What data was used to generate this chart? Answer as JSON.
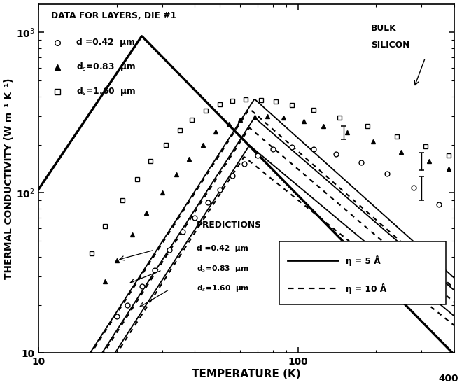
{
  "xlabel": "TEMPERATURE (K)",
  "ylabel": "THERMAL CONDUCTIVITY (W m⁻¹ K⁻¹)",
  "xlim_log": [
    1.0,
    2.602
  ],
  "ylim_log": [
    1.0,
    3.176
  ],
  "bulk_silicon_label": "BULK\nSILICON",
  "predictions_label": "PREDICTIONS",
  "legend_title": "DATA FOR LAYERS, DIE #1",
  "eta5_label": "η = 5 Å",
  "eta10_label": "η = 10 Å",
  "data_042_T": [
    20,
    22,
    25,
    28,
    32,
    36,
    40,
    45,
    50,
    56,
    62,
    70,
    80,
    95,
    115,
    140,
    175,
    220,
    280,
    350
  ],
  "data_042_k": [
    17,
    20,
    26,
    33,
    44,
    57,
    70,
    87,
    105,
    128,
    152,
    172,
    188,
    193,
    188,
    175,
    155,
    132,
    108,
    85
  ],
  "data_083_T": [
    18,
    20,
    23,
    26,
    30,
    34,
    38,
    43,
    48,
    54,
    60,
    68,
    76,
    88,
    105,
    125,
    155,
    195,
    250,
    320,
    380
  ],
  "data_083_k": [
    28,
    38,
    55,
    75,
    100,
    130,
    162,
    200,
    240,
    268,
    285,
    298,
    300,
    295,
    280,
    262,
    238,
    210,
    180,
    158,
    142
  ],
  "data_160_T": [
    16,
    18,
    21,
    24,
    27,
    31,
    35,
    39,
    44,
    50,
    56,
    63,
    72,
    82,
    95,
    115,
    145,
    185,
    240,
    310,
    380
  ],
  "data_160_k": [
    42,
    62,
    90,
    122,
    158,
    200,
    245,
    285,
    325,
    358,
    375,
    382,
    380,
    370,
    352,
    328,
    295,
    260,
    225,
    195,
    172
  ],
  "eb_042_T": [
    300
  ],
  "eb_042_k": [
    108
  ],
  "eb_042_yerr": [
    18
  ],
  "eb_083_T": [
    300,
    150
  ],
  "eb_083_k": [
    158,
    238
  ],
  "eb_083_yerr": [
    20,
    22
  ],
  "eb_160_T": [],
  "eb_160_k": [],
  "eb_160_yerr": []
}
